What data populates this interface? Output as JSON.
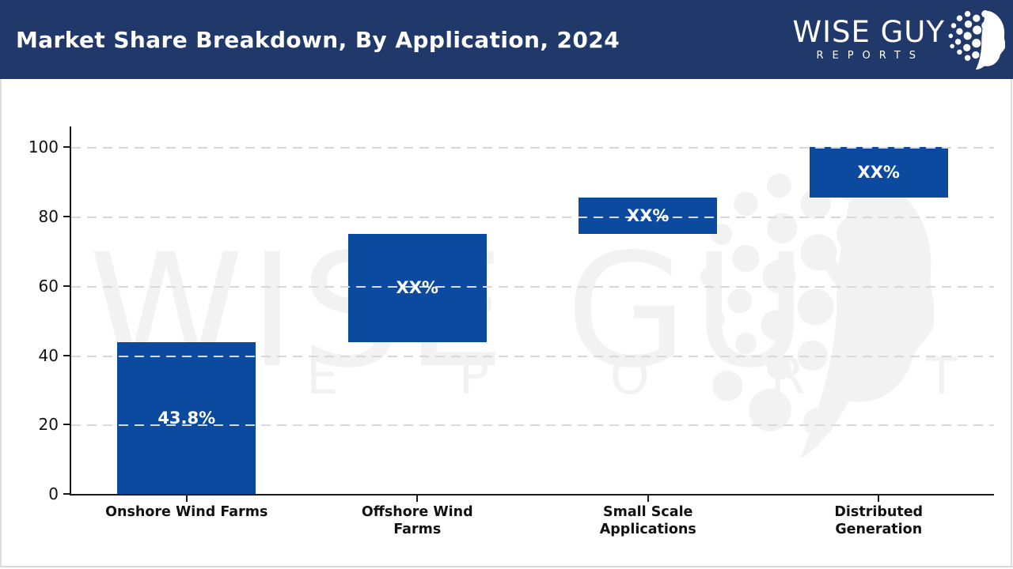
{
  "header": {
    "title": "Market Share Breakdown, By Application, 2024",
    "logo_line1": "WISE GUY",
    "logo_line2": "REPORTS"
  },
  "watermark": {
    "line1": "WISE GUY",
    "line2": "R E P O R T S"
  },
  "colors": {
    "header_bg": "#21386B",
    "bar": "#0C4AA0",
    "grid": "#D9D9D9",
    "axis": "#1A1A1A",
    "watermark": "#F2F2F3",
    "frame_line": "#D9D9D9",
    "bar_label_text": "#FFFFFF"
  },
  "chart_data": {
    "type": "bar",
    "subtype": "waterfall",
    "title": "Market Share Breakdown, By Application, 2024",
    "xlabel": "",
    "ylabel": "",
    "ylim": [
      0,
      106
    ],
    "y_ticks": [
      0,
      20,
      40,
      60,
      80,
      100
    ],
    "grid": "horizontal dashed, drawn above bars",
    "legend": "none",
    "bar_width_pct": 15,
    "categories": [
      "Onshore Wind Farms",
      "Offshore Wind Farms",
      "Small Scale Applications",
      "Distributed Generation"
    ],
    "bars": [
      {
        "category": "Onshore Wind Farms",
        "tick_label": "Onshore Wind Farms",
        "start": 0,
        "end": 43.8,
        "value_label": "43.8%"
      },
      {
        "category": "Offshore Wind Farms",
        "tick_label": "Offshore Wind\nFarms",
        "start": 43.8,
        "end": 75,
        "value_label": "XX%"
      },
      {
        "category": "Small Scale Applications",
        "tick_label": "Small Scale\nApplications",
        "start": 75,
        "end": 85.5,
        "value_label": "XX%"
      },
      {
        "category": "Distributed Generation",
        "tick_label": "Distributed\nGeneration",
        "start": 85.5,
        "end": 100,
        "value_label": "XX%"
      }
    ]
  }
}
